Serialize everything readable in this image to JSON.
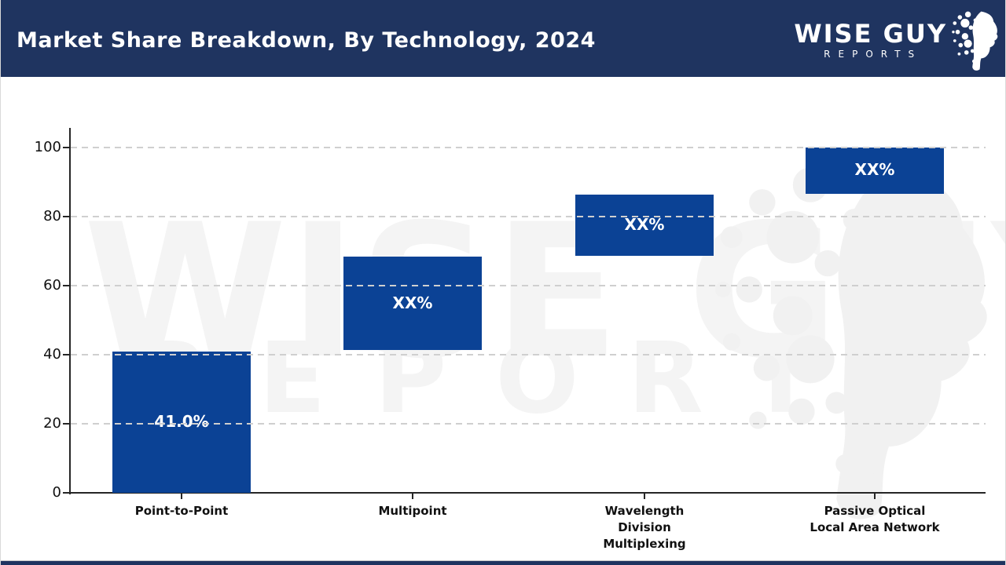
{
  "header": {
    "title": "Market Share Breakdown, By Technology, 2024",
    "logo": {
      "wordmark": "WISE GUY",
      "subtext": "REPORTS"
    }
  },
  "watermark": {
    "line1": "WISE GUY",
    "line2": "REPORTS"
  },
  "colors": {
    "header_bg": "#1f3460",
    "bar": "#0b4295",
    "bar_label": "#ffffff",
    "grid": "#cfcfcf",
    "axis": "#262626",
    "tick_label": "#111111",
    "watermark": "#f4f4f4",
    "footer_bar": "#1f3460",
    "page_bg": "#ffffff"
  },
  "chart_data": {
    "type": "bar",
    "subtype": "waterfall",
    "title": "Market Share Breakdown, By Technology, 2024",
    "categories": [
      [
        "Point-to-Point"
      ],
      [
        "Multipoint"
      ],
      [
        "Wavelength",
        "Division",
        "Multiplexing"
      ],
      [
        "Passive Optical",
        "Local Area Network"
      ]
    ],
    "segments": [
      {
        "category": "Point-to-Point",
        "start": 0,
        "end": 41,
        "label": "41.0%"
      },
      {
        "category": "Multipoint",
        "start": 41.3,
        "end": 68.4,
        "label": "XX%"
      },
      {
        "category": "Wavelength Division Multiplexing",
        "start": 68.6,
        "end": 86.4,
        "label": "XX%"
      },
      {
        "category": "Passive Optical Local Area Network",
        "start": 86.6,
        "end": 100,
        "label": "XX%"
      }
    ],
    "yticks": [
      0,
      20,
      40,
      60,
      80,
      100
    ],
    "ylim": [
      0,
      105.7
    ],
    "xlabel": "",
    "ylabel": "",
    "grid": "horizontal-dashed",
    "legend": "none"
  }
}
